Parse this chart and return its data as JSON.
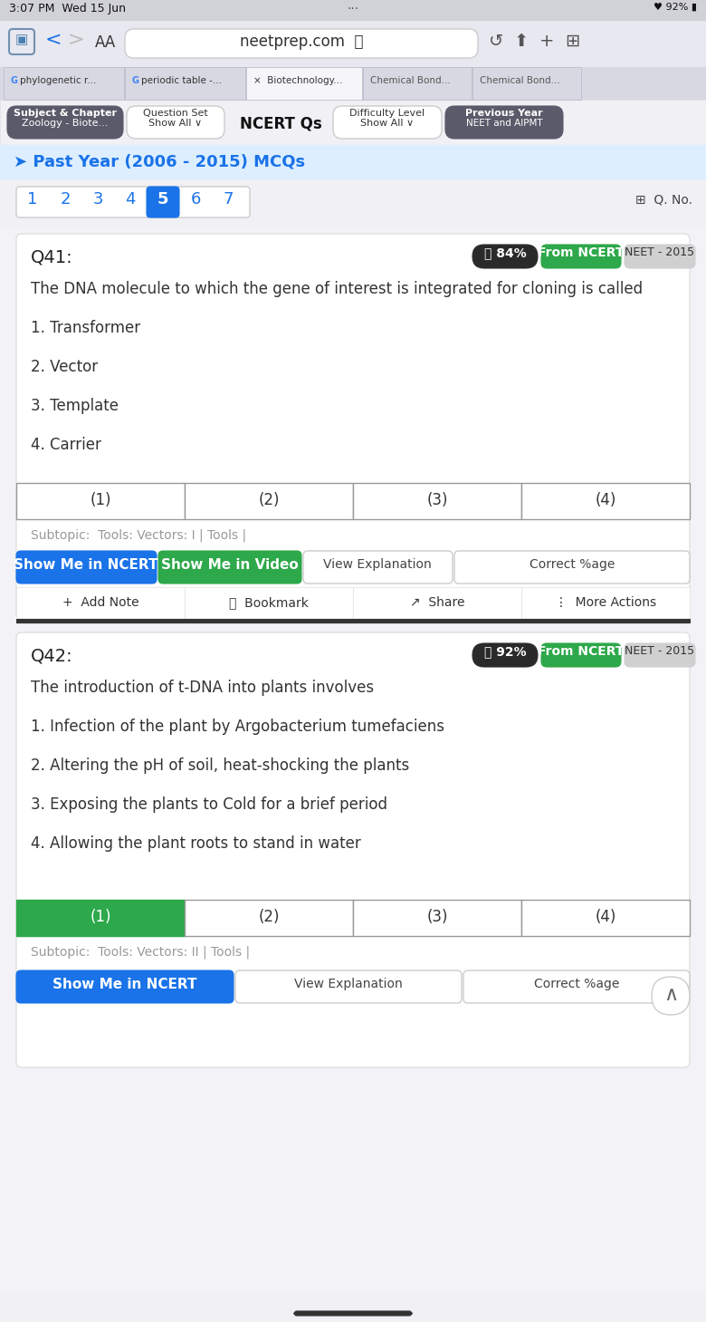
{
  "bg_color": "#f2f2f7",
  "white": "#ffffff",
  "blue_color": "#1a73e8",
  "green_color": "#2da84a",
  "status_time": "3:07 PM  Wed 15 Jun",
  "url": "neetprep.com",
  "tabs": [
    "phylogenetic r...",
    "periodic table -...",
    "Biotechnology...",
    "Chemical Bond...",
    "Chemical Bond..."
  ],
  "active_tab": 2,
  "pages": [
    "1",
    "2",
    "3",
    "4",
    "5",
    "6",
    "7"
  ],
  "active_page": 4,
  "past_year_text": "➤ Past Year (2006 - 2015) MCQs",
  "q41_label": "Q41:",
  "q41_pct": "👍 84%",
  "q41_ncert": "From NCERT",
  "q41_year": "NEET - 2015",
  "q41_question": "The DNA molecule to which the gene of interest is integrated for cloning is called",
  "q41_options": [
    "1. Transformer",
    "2. Vector",
    "3. Template",
    "4. Carrier"
  ],
  "q41_cells": [
    "(1)",
    "(2)",
    "(3)",
    "(4)"
  ],
  "q41_subtopic": "Subtopic:  Tools: Vectors: I | Tools |",
  "q41_btn1": "Show Me in NCERT",
  "q41_btn2": "Show Me in Video",
  "q41_btn3": "View Explanation",
  "q41_btn4": "Correct %age",
  "q41_act1": "Add Note",
  "q41_act2": "Bookmark",
  "q41_act3": "Share",
  "q41_act4": "More Actions",
  "q42_label": "Q42:",
  "q42_pct": "👍 92%",
  "q42_ncert": "From NCERT",
  "q42_year": "NEET - 2015",
  "q42_question": "The introduction of t-DNA into plants involves",
  "q42_options": [
    "1. Infection of the plant by Argobacterium tumefaciens",
    "2. Altering the pH of soil, heat-shocking the plants",
    "3. Exposing the plants to Cold for a brief period",
    "4. Allowing the plant roots to stand in water"
  ],
  "q42_cells": [
    "(1)",
    "(2)",
    "(3)",
    "(4)"
  ],
  "q42_selected": 0,
  "q42_subtopic": "Subtopic:  Tools: Vectors: II | Tools |",
  "q42_btn1": "Show Me in NCERT",
  "q42_btn2": "View Explanation",
  "q42_btn3": "Correct %age"
}
